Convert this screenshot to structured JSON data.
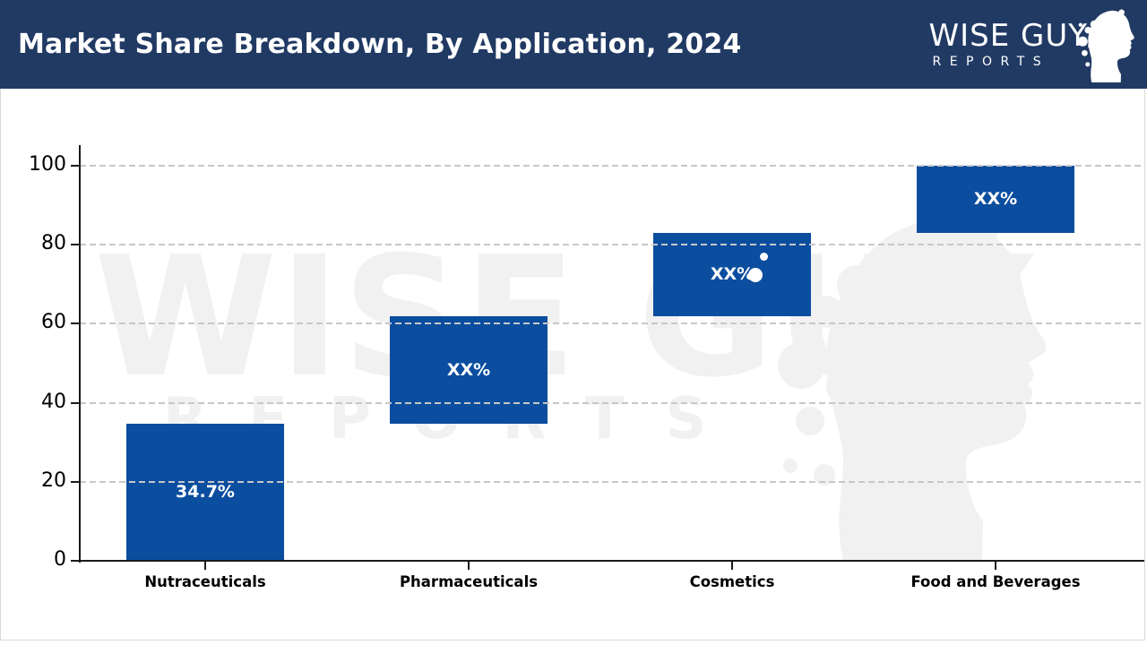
{
  "header": {
    "title": "Market Share Breakdown, By Application, 2024",
    "logo": {
      "line1": "WISE GUY",
      "line2": "REPORTS"
    }
  },
  "watermark": {
    "line1": "WISE GUY",
    "line2": "REPORTS"
  },
  "colors": {
    "header_bg": "#213A64",
    "bar_blue": "#0B4D9F",
    "grid_gray": "#C8C8C8",
    "axis_black": "#1A1A1A",
    "watermark_gray": "#F1F1F2",
    "text_white": "#FFFFFF"
  },
  "chart_data": {
    "type": "bar",
    "subtype": "waterfall",
    "title": "Market Share Breakdown, By Application, 2024",
    "categories": [
      "Nutraceuticals",
      "Pharmaceuticals",
      "Cosmetics",
      "Food and Beverages"
    ],
    "segments": [
      {
        "category": "Nutraceuticals",
        "start": 0,
        "end": 34.7,
        "label": "34.7%"
      },
      {
        "category": "Pharmaceuticals",
        "start": 34.7,
        "end": 62,
        "label": "XX%"
      },
      {
        "category": "Cosmetics",
        "start": 62,
        "end": 83,
        "label": "XX%"
      },
      {
        "category": "Food and Beverages",
        "start": 83,
        "end": 100,
        "label": "XX%"
      }
    ],
    "ylim": [
      0,
      100
    ],
    "yticks": [
      0,
      20,
      40,
      60,
      80,
      100
    ],
    "xlabel": "",
    "ylabel": "",
    "grid": "dashed-horizontal",
    "legend": "none"
  }
}
